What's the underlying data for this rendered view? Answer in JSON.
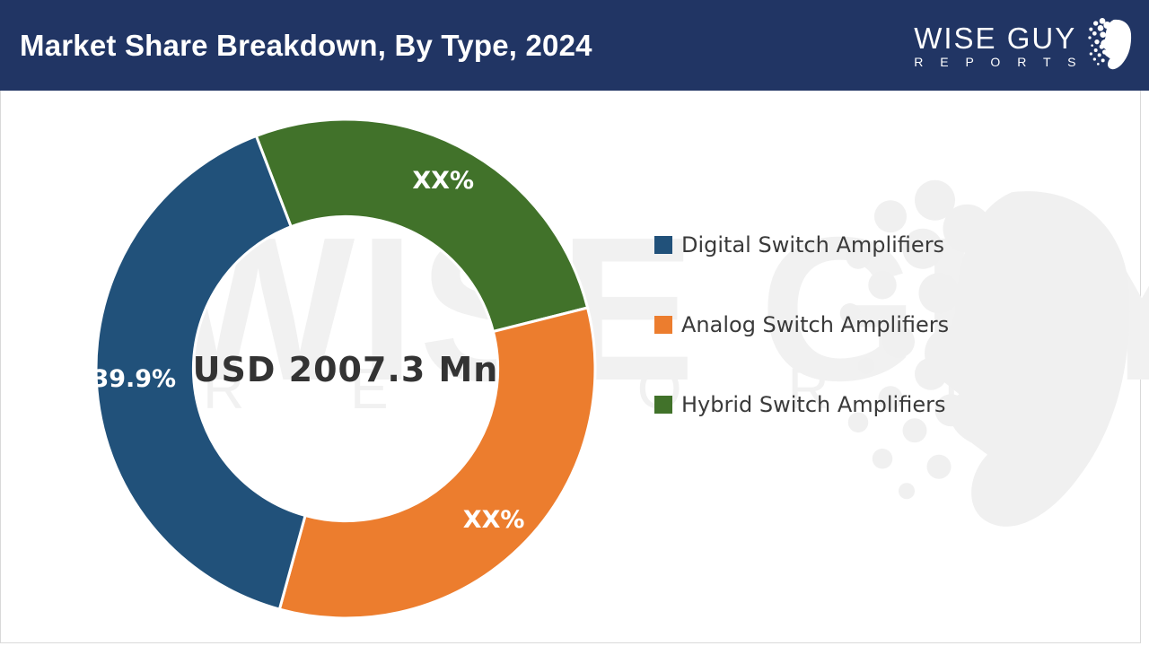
{
  "header": {
    "title": "Market Share Breakdown, By Type, 2024",
    "bg_color": "#213564",
    "logo": {
      "line1": "WISE GUY",
      "line2": "REPORTS"
    }
  },
  "watermark": {
    "line1": "WISE GUY",
    "line2": "R E P O R T S",
    "color": "#f1f1f1"
  },
  "chart_data": {
    "type": "pie",
    "subtype": "donut",
    "title": "Market Share Breakdown, By Type, 2024",
    "center_label": "USD 2007.3 Mn",
    "donut_hole_ratio": 0.61,
    "start_angle_deg": -21,
    "draw_order": [
      2,
      1,
      0
    ],
    "legend_position": "right",
    "segments": [
      {
        "name": "Digital Switch Amplifiers",
        "value_label": "39.9%",
        "value_pct": 39.9,
        "color": "#21517A"
      },
      {
        "name": "Analog Switch Amplifiers",
        "value_label": "XX%",
        "value_pct": 33.2,
        "color": "#EC7D2E"
      },
      {
        "name": "Hybrid Switch Amplifiers",
        "value_label": "XX%",
        "value_pct": 26.9,
        "color": "#41722A"
      }
    ]
  }
}
